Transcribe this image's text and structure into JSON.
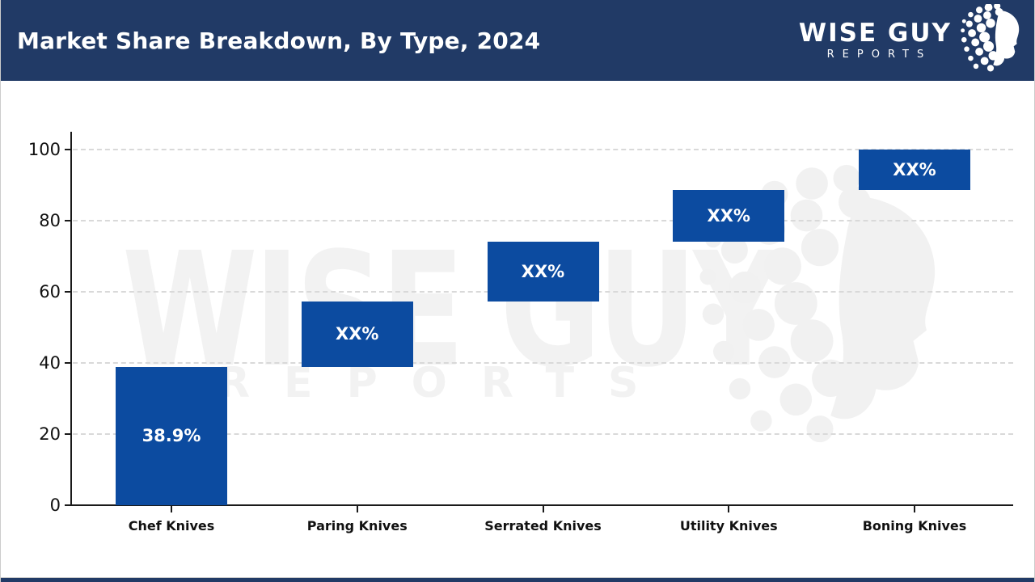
{
  "header": {
    "title": "Market Share Breakdown, By Type, 2024",
    "logo": {
      "line1": "WISE GUY",
      "line2": "REPORTS",
      "head_icon": "dotted-face-profile-icon"
    }
  },
  "watermark": {
    "line1": "WISE GUY",
    "line2": "REPORTS",
    "head_icon": "dotted-face-profile-icon"
  },
  "colors": {
    "header_bg": "#213a66",
    "footer_bg": "#213a66",
    "bar": "#0c4ba0",
    "bar_label": "#ffffff",
    "grid": "#d9d9d9",
    "axis": "#1a1a1a",
    "watermark": "#f2f2f2"
  },
  "chart_data": {
    "type": "bar",
    "subtype": "waterfall",
    "title": "Market Share Breakdown, By Type, 2024",
    "categories": [
      "Chef Knives",
      "Paring Knives",
      "Serrated Knives",
      "Utility Knives",
      "Boning Knives"
    ],
    "segments": [
      {
        "start": 0,
        "end": 38.9,
        "label": "38.9%"
      },
      {
        "start": 38.9,
        "end": 57.3,
        "label": "XX%"
      },
      {
        "start": 57.3,
        "end": 74.0,
        "label": "XX%"
      },
      {
        "start": 74.0,
        "end": 88.6,
        "label": "XX%"
      },
      {
        "start": 88.6,
        "end": 100,
        "label": "XX%"
      }
    ],
    "yticks": [
      0,
      20,
      40,
      60,
      80,
      100
    ],
    "ylim": [
      0,
      105
    ],
    "xlabel": "",
    "ylabel": "",
    "grid": "dashed-horizontal",
    "legend": "none"
  }
}
